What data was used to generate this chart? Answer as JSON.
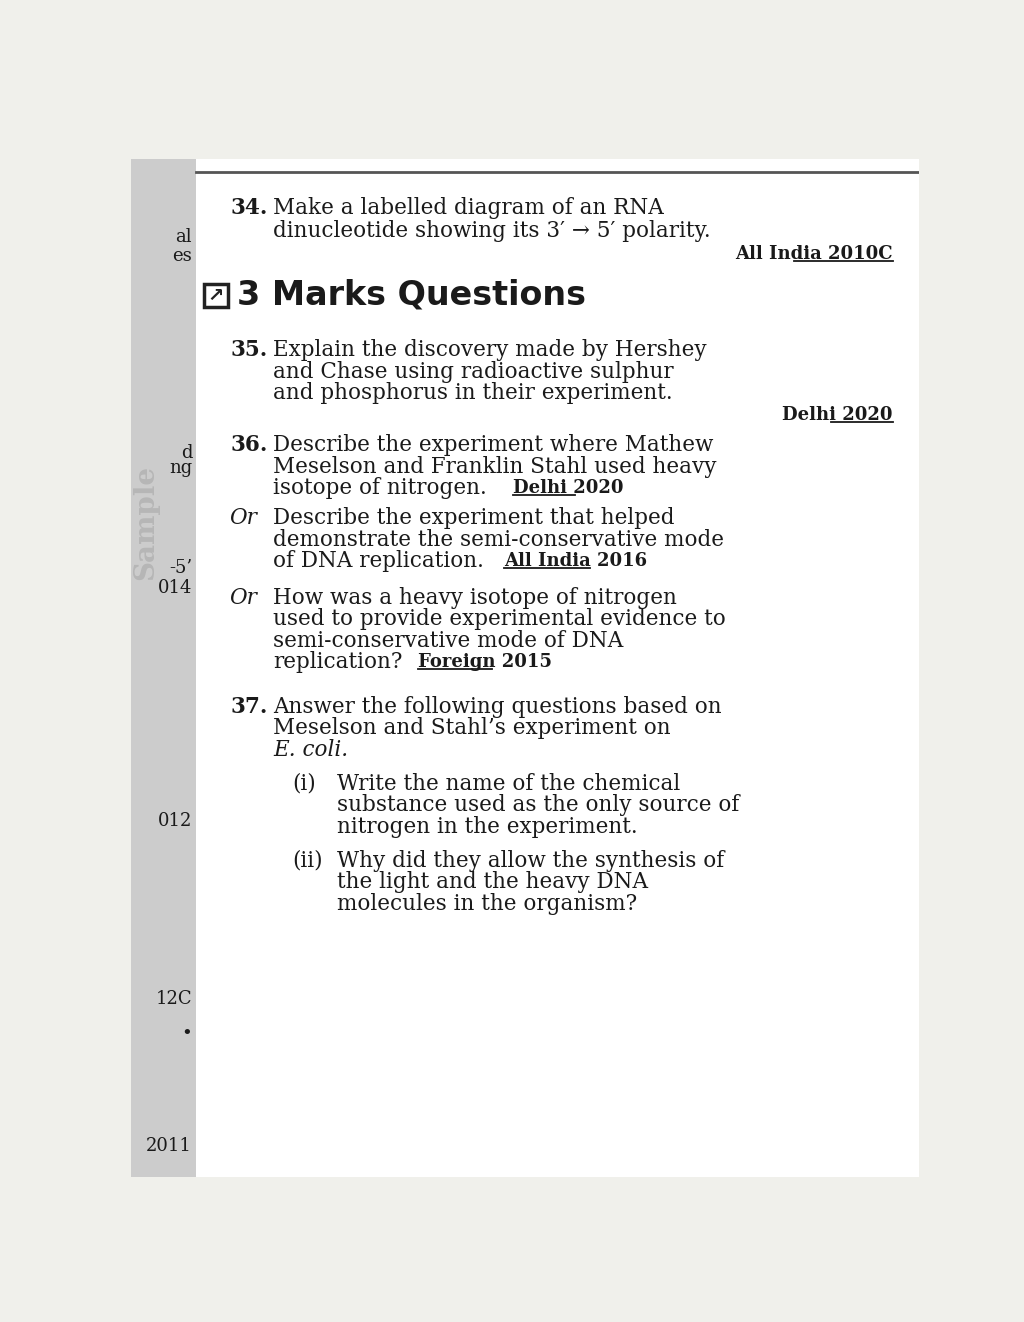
{
  "background_color": "#f0f0eb",
  "page_bg": "#ffffff",
  "left_margin_bg": "#d0d0d0",
  "text_color": "#1a1a1a",
  "font_size_main": 15.5,
  "font_size_ref": 13,
  "font_size_section": 24,
  "font_size_left": 13,
  "left_label_data": [
    [
      "al",
      1220
    ],
    [
      "es",
      1195
    ],
    [
      "d",
      940
    ],
    [
      "ng",
      920
    ],
    [
      "-5’",
      790
    ],
    [
      "014",
      765
    ],
    [
      "012",
      462
    ],
    [
      "12C",
      231
    ],
    [
      "•",
      185
    ],
    [
      "2011",
      40
    ]
  ],
  "q34_number": "34.",
  "q34_line1": "Make a labelled diagram of an RNA",
  "q34_line2": "dinucleotide showing its 3′ → 5′ polarity.",
  "q34_ref": "All India 2010C",
  "section_title": "3 Marks Questions",
  "q35_number": "35.",
  "q35_line1": "Explain the discovery made by Hershey",
  "q35_line2": "and Chase using radioactive sulphur",
  "q35_line3": "and phosphorus in their experiment.",
  "q35_ref": "Delhi 2020",
  "q36_number": "36.",
  "q36_line1": "Describe the experiment where Mathew",
  "q36_line2": "Meselson and Franklin Stahl used heavy",
  "q36_line3": "isotope of nitrogen.",
  "q36_ref_inline": "Delhi 2020",
  "or1_label": "Or",
  "or1_line1": "Describe the experiment that helped",
  "or1_line2": "demonstrate the semi-conservative mode",
  "or1_line3": "of DNA replication.",
  "or1_ref_inline": "All India 2016",
  "or2_label": "Or",
  "or2_line1": "How was a heavy isotope of nitrogen",
  "or2_line2": "used to provide experimental evidence to",
  "or2_line3": "semi-conservative mode of DNA",
  "or2_line4": "replication?",
  "or2_ref_inline": "Foreign 2015",
  "q37_number": "37.",
  "q37_line1": "Answer the following questions based on",
  "q37_line2": "Meselson and Stahl’s experiment on",
  "q37_line3": "E. coli.",
  "q37_i_label": "(i)",
  "q37_i_line1": "Write the name of the chemical",
  "q37_i_line2": "substance used as the only source of",
  "q37_i_line3": "nitrogen in the experiment.",
  "q37_ii_label": "(ii)",
  "q37_ii_line1": "Why did they allow the synthesis of",
  "q37_ii_line2": "the light and the heavy DNA",
  "q37_ii_line3": "molecules in the organism?"
}
